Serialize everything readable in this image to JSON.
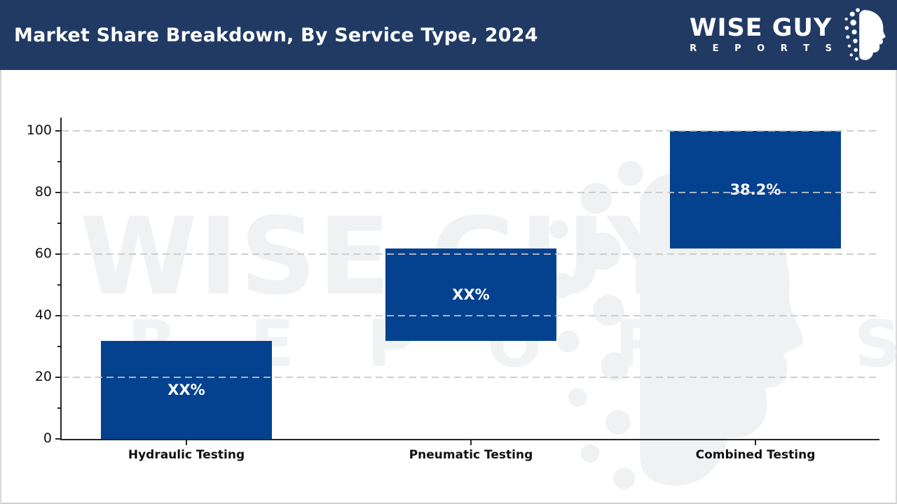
{
  "header": {
    "title": "Market Share Breakdown, By Service Type, 2024",
    "logo": {
      "line1": "WISE GUY",
      "line2": "R E P O R T S"
    }
  },
  "watermark": {
    "line1": "WISE GUY",
    "line2": "R E P O R T S"
  },
  "colors": {
    "header_bg": "#203a64",
    "bar": "#04418f",
    "bar_label": "#ffffff",
    "grid": "#c6c6c6",
    "axis": "#262626",
    "watermark": "#f0f1f3"
  },
  "chart_data": {
    "type": "bar",
    "subtype": "waterfall-floating-bars",
    "title": "Market Share Breakdown, By Service Type, 2024",
    "categories": [
      "Hydraulic Testing",
      "Pneumatic Testing",
      "Combined Testing"
    ],
    "values": [
      31.8,
      30.0,
      38.2
    ],
    "segments": [
      {
        "category": "Hydraulic Testing",
        "start": 0,
        "end": 31.8,
        "value_label": "XX%"
      },
      {
        "category": "Pneumatic Testing",
        "start": 31.8,
        "end": 61.8,
        "value_label": "XX%"
      },
      {
        "category": "Combined Testing",
        "start": 61.8,
        "end": 100,
        "value_label": "38.2%"
      }
    ],
    "xlabel": "",
    "ylabel": "",
    "yticks": [
      0,
      20,
      40,
      60,
      80,
      100
    ],
    "minor_yticks": [
      10,
      30,
      50,
      70,
      90
    ],
    "ylim": [
      0,
      104
    ],
    "grid": "horizontal-dashed",
    "legend": "none"
  }
}
